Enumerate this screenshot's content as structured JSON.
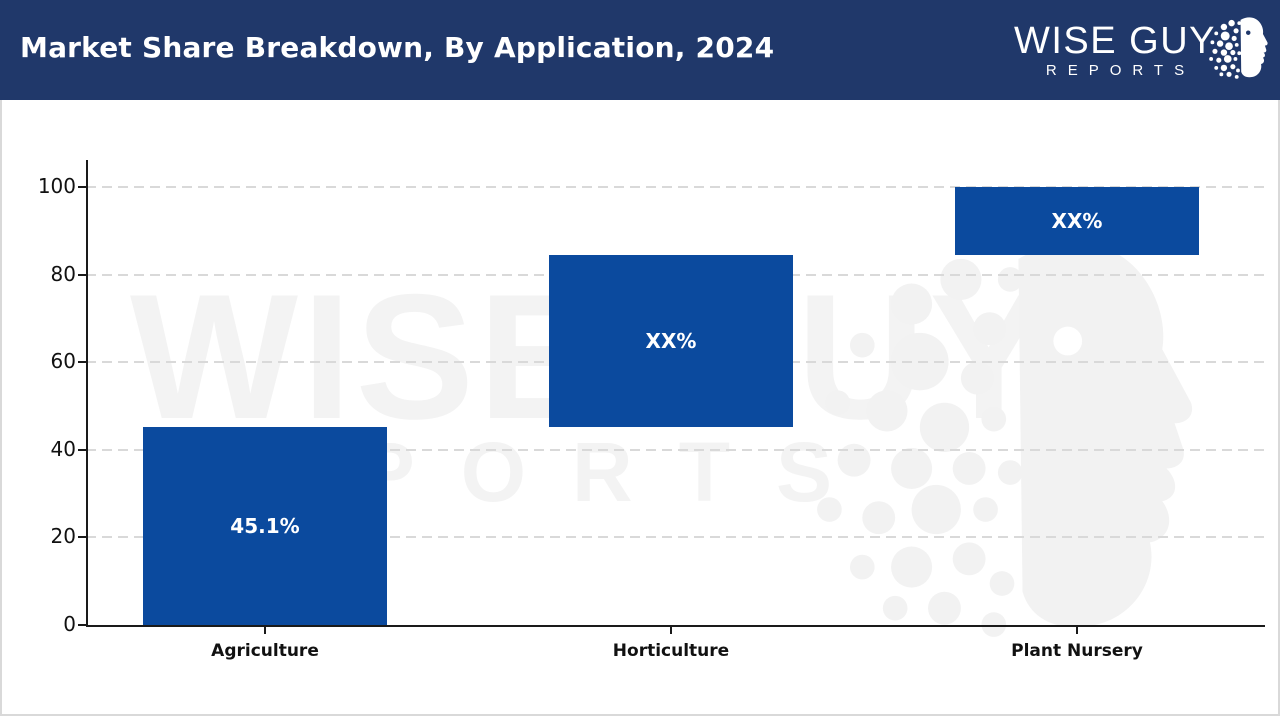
{
  "header": {
    "title": "Market Share Breakdown, By Application, 2024",
    "bg_color": "#20386a",
    "logo": {
      "line1": "WISE GUY",
      "line2": "REPORTS"
    }
  },
  "watermark": {
    "line1": "WISE GUY",
    "line2": "REPORTS"
  },
  "chart_data": {
    "type": "bar",
    "subtype": "floating-segment-waterfall",
    "title": "Market Share Breakdown, By Application, 2024",
    "categories": [
      "Agriculture",
      "Horticulture",
      "Plant Nursery"
    ],
    "segments": [
      {
        "category": "Agriculture",
        "start": 0,
        "end": 45.1,
        "label": "45.1%"
      },
      {
        "category": "Horticulture",
        "start": 45.1,
        "end": 84.5,
        "label": "XX%"
      },
      {
        "category": "Plant Nursery",
        "start": 84.5,
        "end": 100,
        "label": "XX%"
      }
    ],
    "ylim": [
      0,
      100
    ],
    "yticks": [
      0,
      20,
      40,
      60,
      80,
      100
    ],
    "grid": {
      "axis": "y",
      "style": "dashed",
      "color": "#d9d9d9"
    },
    "bar_color": "#0b4a9e",
    "bar_label_color": "#ffffff",
    "axis_color": "#1a1a1a",
    "tick_label_color": "#111111",
    "legend": "none"
  }
}
